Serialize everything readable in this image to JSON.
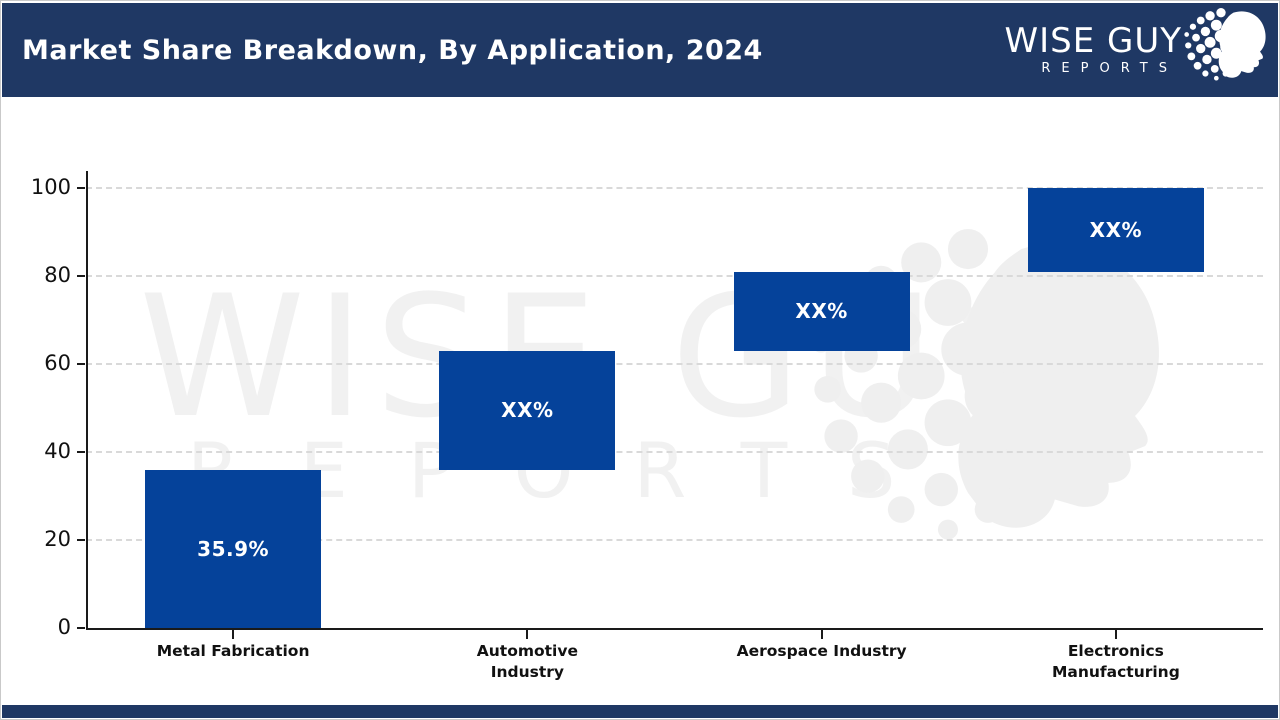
{
  "header": {
    "title": "Market Share Breakdown, By Application, 2024",
    "logo": {
      "line1": "WISE GUY",
      "line2": "REPORTS"
    }
  },
  "watermark": {
    "line1": "WISE GUY",
    "line2": "REPORTS"
  },
  "footer": {},
  "chart_data": {
    "type": "bar",
    "subtype": "floating-waterfall",
    "title": "Market Share Breakdown, By Application, 2024",
    "categories": [
      "Metal Fabrication",
      "Automotive\nIndustry",
      "Aerospace Industry",
      "Electronics\nManufacturing"
    ],
    "series": [
      {
        "name": "Market share (%)",
        "segments": [
          {
            "category": "Metal Fabrication",
            "start": 0,
            "end": 35.9,
            "label": "35.9%"
          },
          {
            "category": "Automotive Industry",
            "start": 35.9,
            "end": 63,
            "label": "XX%"
          },
          {
            "category": "Aerospace Industry",
            "start": 63,
            "end": 81,
            "label": "XX%"
          },
          {
            "category": "Electronics Manufacturing",
            "start": 81,
            "end": 100,
            "label": "XX%"
          }
        ]
      }
    ],
    "xlabel": "",
    "ylabel": "",
    "ylim": [
      0,
      100
    ],
    "yticks": [
      0,
      20,
      40,
      60,
      80,
      100
    ],
    "grid": "horizontal-dashed",
    "legend": "none",
    "bar_color": "#05429a",
    "bar_label_color": "#ffffff",
    "gridline_color": "#d9d9d9",
    "header_color": "#1f3864"
  }
}
